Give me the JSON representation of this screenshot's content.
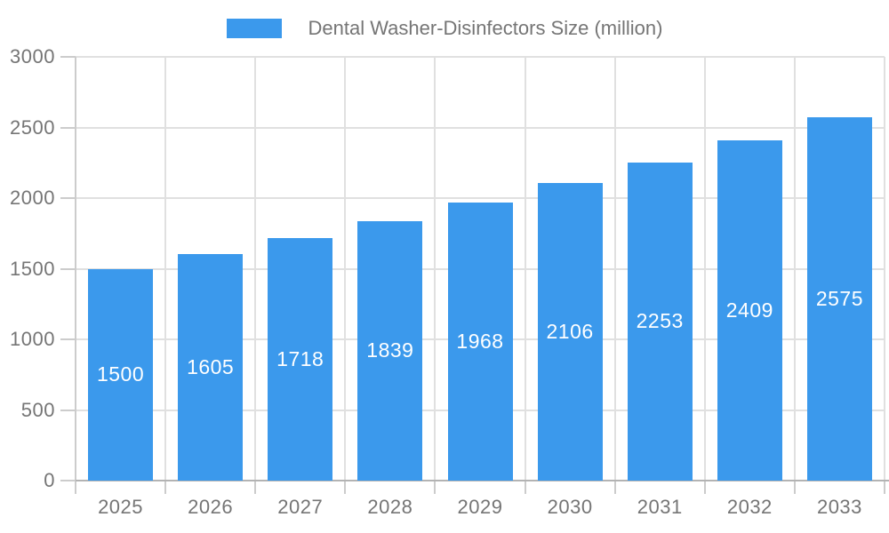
{
  "legend": {
    "label": "Dental Washer-Disinfectors Size (million)"
  },
  "chart_data": {
    "type": "bar",
    "title": "Dental Washer-Disinfectors Size (million)",
    "series_name": "Dental Washer-Disinfectors Size (million)",
    "categories": [
      "2025",
      "2026",
      "2027",
      "2028",
      "2029",
      "2030",
      "2031",
      "2032",
      "2033"
    ],
    "values": [
      1500,
      1605,
      1718,
      1839,
      1968,
      2106,
      2253,
      2409,
      2575
    ],
    "xlabel": "",
    "ylabel": "",
    "ylim": [
      0,
      3000
    ],
    "yticks": [
      0,
      500,
      1000,
      1500,
      2000,
      2500,
      3000
    ],
    "grid": true,
    "legend_position": "top-center",
    "value_label_position": "inside-center",
    "colors": {
      "bar": "#3b99ec",
      "value_label": "#ffffff",
      "axis_text": "#757575",
      "gridline": "#e0e0e0",
      "axis_line": "#b3b3b3",
      "tick_line": "#cccccc",
      "background": "#ffffff"
    }
  }
}
